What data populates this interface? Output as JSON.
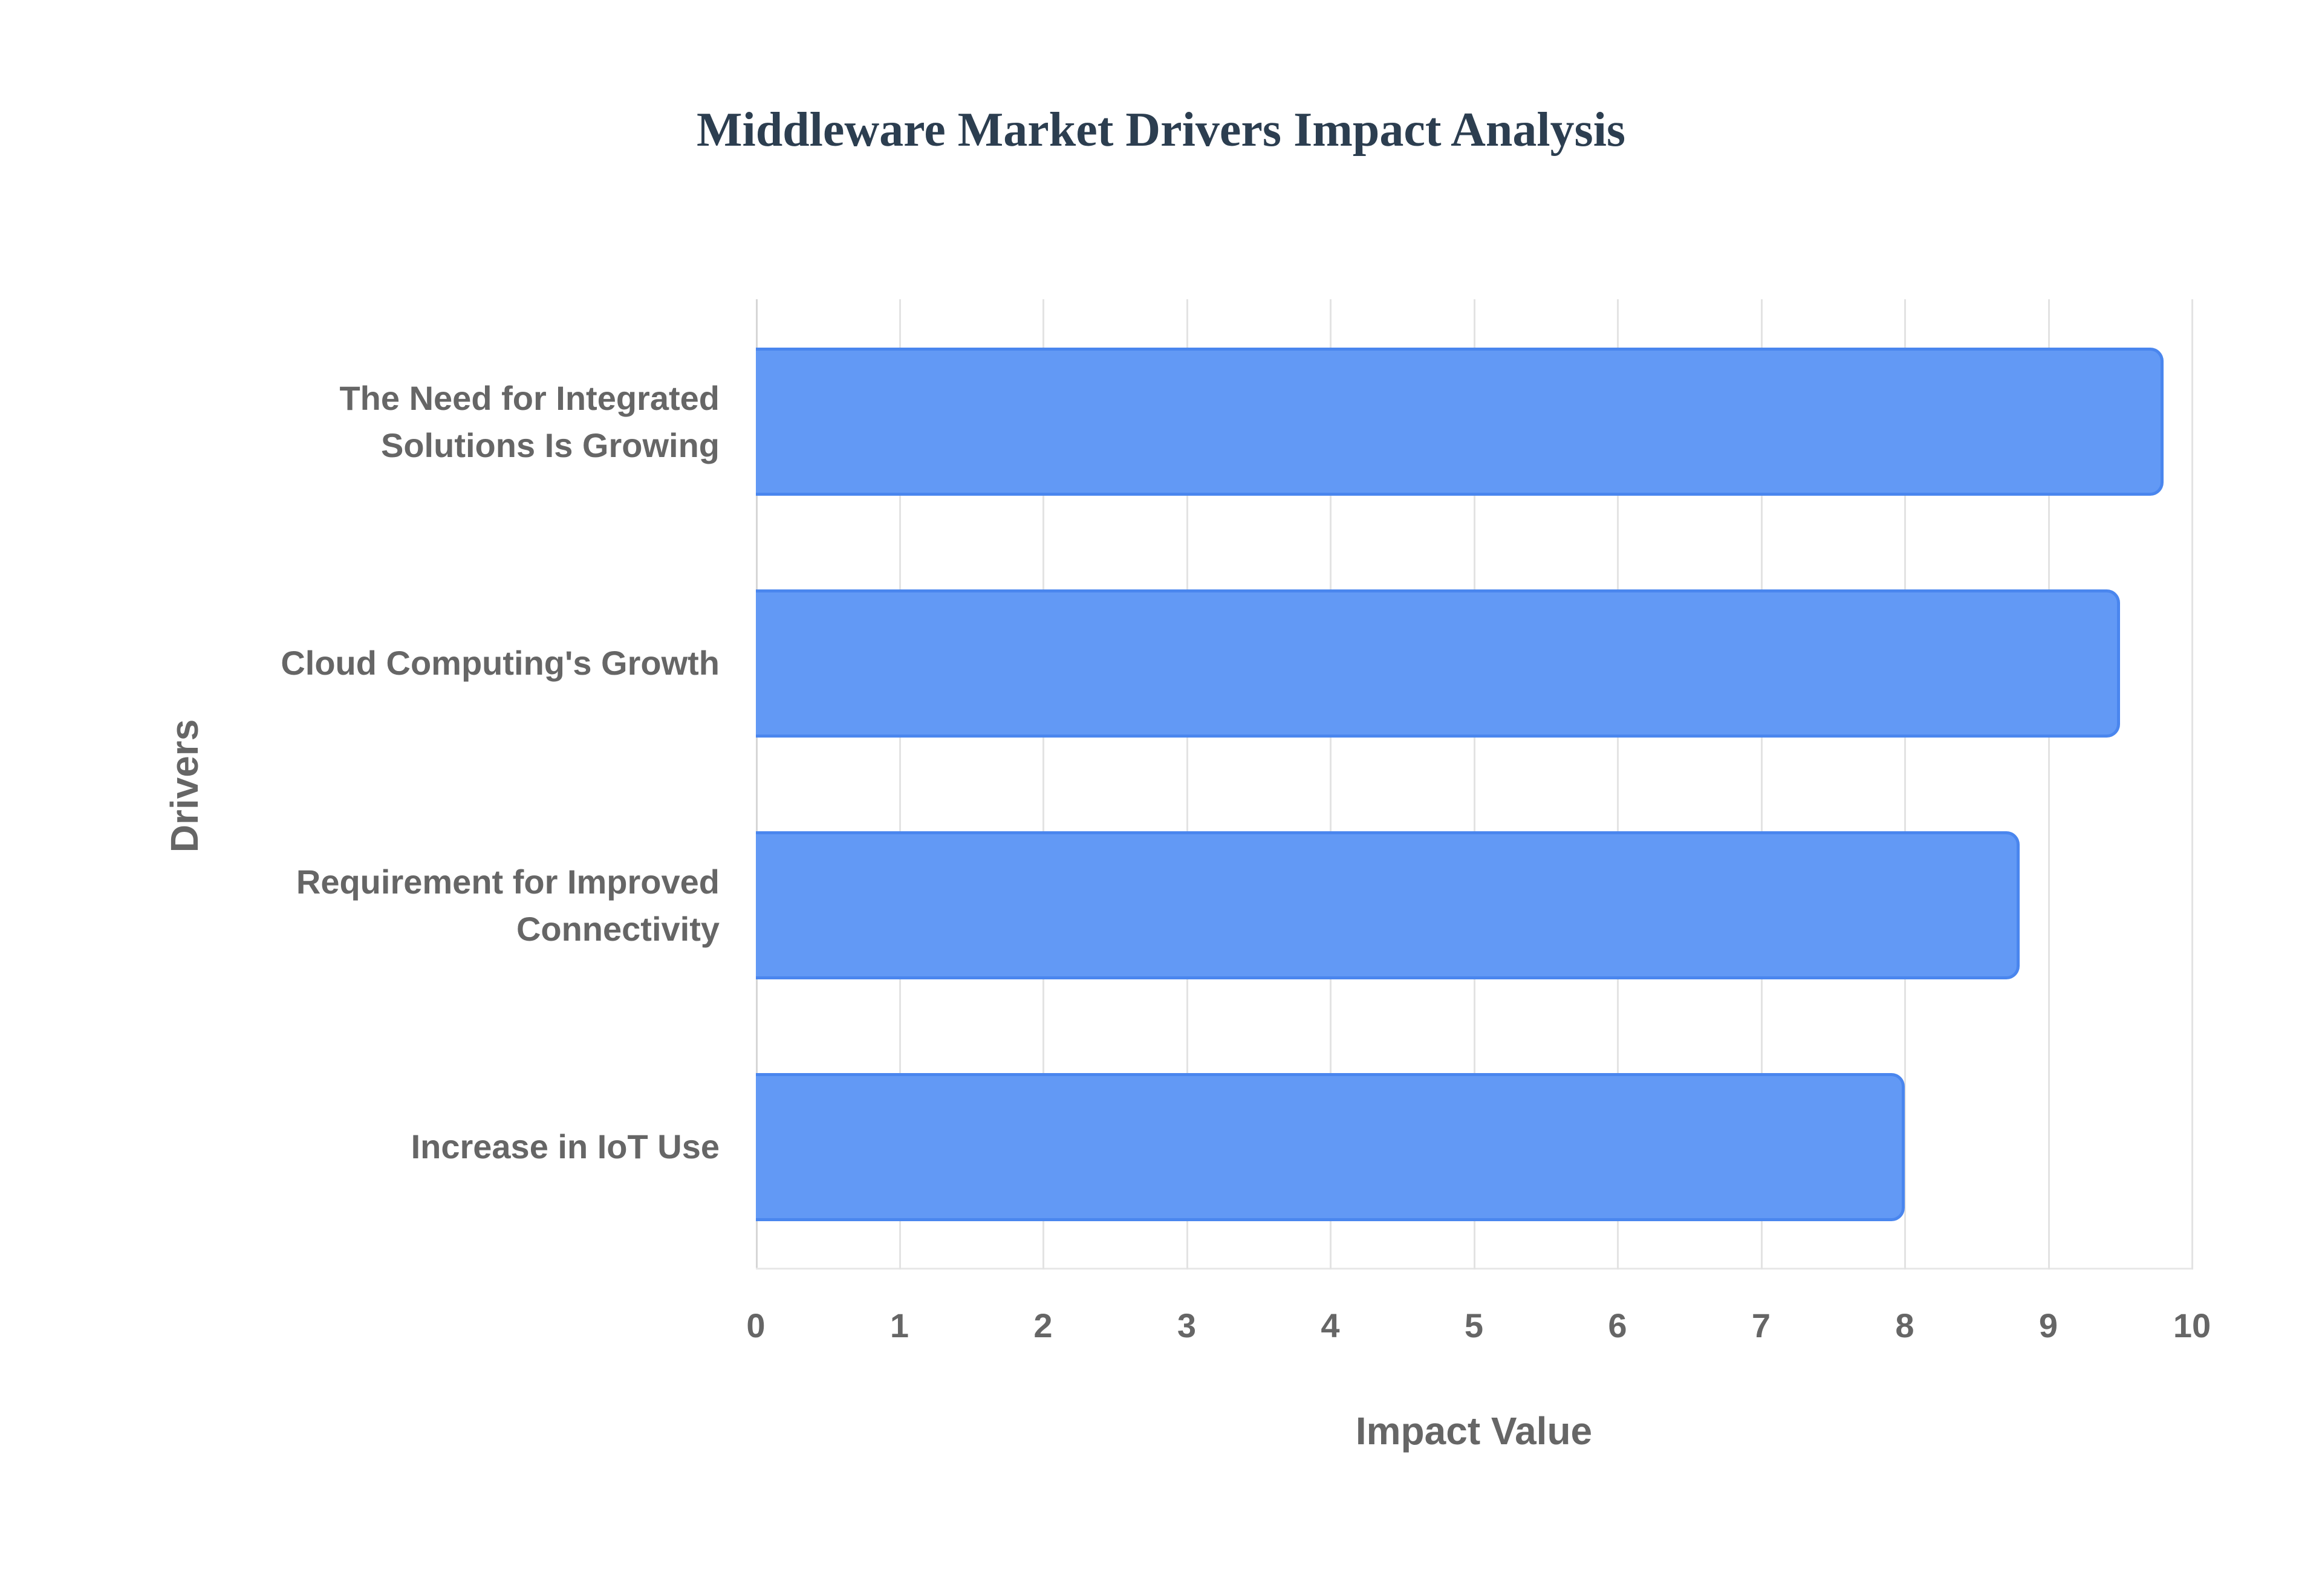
{
  "chart_data": {
    "type": "bar",
    "orientation": "horizontal",
    "title": "Middleware Market Drivers Impact Analysis",
    "xlabel": "Impact Value",
    "ylabel": "Drivers",
    "categories": [
      "The Need for Integrated Solutions Is Growing",
      "Cloud Computing's Growth",
      "Requirement for Improved Connectivity",
      "Increase in IoT Use"
    ],
    "values": [
      9.8,
      9.5,
      8.8,
      8.0
    ],
    "xlim": [
      0,
      10
    ],
    "xticks": [
      "0",
      "1",
      "2",
      "3",
      "4",
      "5",
      "6",
      "7",
      "8",
      "9",
      "10"
    ],
    "grid": true,
    "legend": null,
    "bar_color": "#6299f5",
    "bar_border_color": "#4a86ee"
  },
  "labels": {
    "title": "Middleware Market Drivers Impact Analysis",
    "xlabel": "Impact Value",
    "ylabel": "Drivers",
    "cat0_line1": "The Need for Integrated",
    "cat0_line2": "Solutions Is Growing",
    "cat1": "Cloud Computing's Growth",
    "cat2_line1": "Requirement for Improved",
    "cat2_line2": "Connectivity",
    "cat3": "Increase in IoT Use"
  }
}
